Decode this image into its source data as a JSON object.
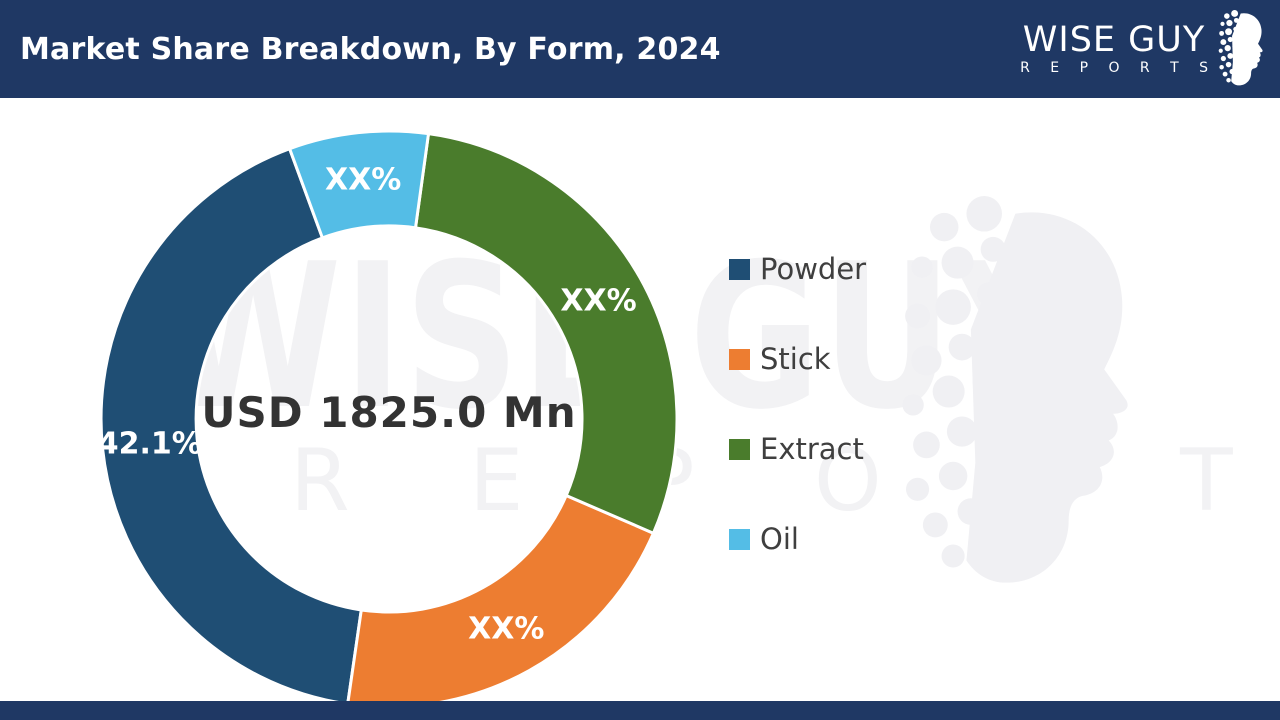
{
  "header": {
    "title": "Market Share Breakdown, By Form, 2024",
    "logo": {
      "line1": "WISE GUY",
      "line2": "R E P O R T S"
    }
  },
  "watermark": {
    "line1": "WISE GUY",
    "line2": "R E P O R T S"
  },
  "colors": {
    "header_bg": "#1f3864",
    "footer_bg": "#1f3864",
    "center_text": "#333333",
    "legend_text": "#3f3f3f",
    "watermark": "#f2f2f4"
  },
  "chart_data": {
    "type": "pie",
    "subtype": "donut",
    "title": "Market Share Breakdown, By Form, 2024",
    "center_label": "USD 1825.0 Mn",
    "start_angle_deg_clockwise_from_top": -20.2,
    "direction": "counterclockwise",
    "inner_radius_ratio": 0.67,
    "legend_position": "right",
    "segments": [
      {
        "name": "Powder",
        "value_pct": 42.1,
        "label": "42.1%",
        "color": "#1f4e74"
      },
      {
        "name": "Stick",
        "value_pct": 20.8,
        "label": "XX%",
        "color": "#ed7d31"
      },
      {
        "name": "Extract",
        "value_pct": 29.3,
        "label": "XX%",
        "color": "#4a7c2c"
      },
      {
        "name": "Oil",
        "value_pct": 7.8,
        "label": "XX%",
        "color": "#54bde6"
      }
    ]
  }
}
